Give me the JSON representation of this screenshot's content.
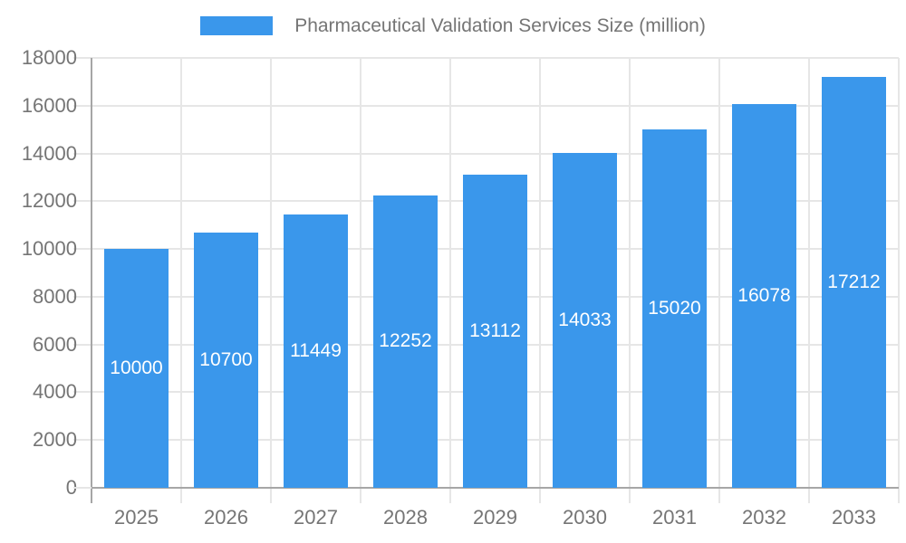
{
  "legend": {
    "label": "Pharmaceutical Validation Services Size (million)"
  },
  "colors": {
    "bar": "#3A97EB",
    "grid": "#E6E6E6",
    "axis": "#A6A6A6",
    "text": "#757575",
    "bar_label": "#FFFFFF",
    "background": "#FFFFFF"
  },
  "chart_data": {
    "type": "bar",
    "title": "Pharmaceutical Validation Services Size (million)",
    "categories": [
      "2025",
      "2026",
      "2027",
      "2028",
      "2029",
      "2030",
      "2031",
      "2032",
      "2033"
    ],
    "values": [
      10000,
      10700,
      11449,
      12252,
      13112,
      14033,
      15020,
      16078,
      17212
    ],
    "data_labels": true,
    "xlabel": "",
    "ylabel": "",
    "ylim": [
      0,
      18000
    ],
    "yticks": [
      0,
      2000,
      4000,
      6000,
      8000,
      10000,
      12000,
      14000,
      16000,
      18000
    ],
    "grid": true,
    "legend_position": "top"
  }
}
